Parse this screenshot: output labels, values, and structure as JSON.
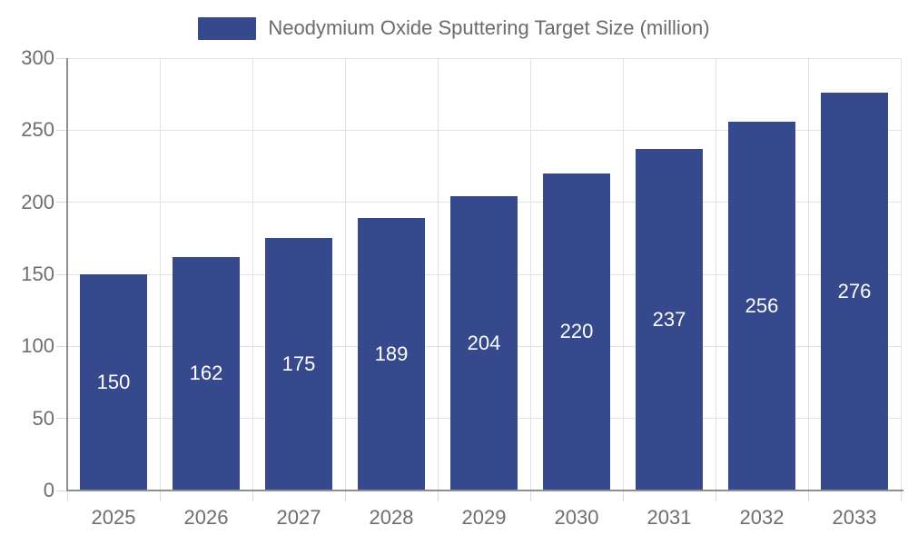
{
  "legend": {
    "label": "Neodymium Oxide Sputtering Target Size (million)"
  },
  "colors": {
    "bar": "#36498c",
    "axis_line": "#8f8f8f",
    "gridline": "#e2e2e2",
    "tick": "#d9d9d9",
    "tick_label": "#6e6e6e",
    "legend_text": "#6b6b6b",
    "value_label": "#ffffff",
    "background": "#ffffff"
  },
  "chart_data": {
    "type": "bar",
    "title": "Neodymium Oxide Sputtering Target Size (million)",
    "categories": [
      "2025",
      "2026",
      "2027",
      "2028",
      "2029",
      "2030",
      "2031",
      "2032",
      "2033"
    ],
    "values": [
      150,
      162,
      175,
      189,
      204,
      220,
      237,
      256,
      276
    ],
    "xlabel": "",
    "ylabel": "",
    "ylim": [
      0,
      300
    ],
    "ytick_step": 50,
    "yticks": [
      0,
      50,
      100,
      150,
      200,
      250,
      300
    ],
    "grid": true,
    "legend_position": "top",
    "bar_labels": "inside-center"
  }
}
